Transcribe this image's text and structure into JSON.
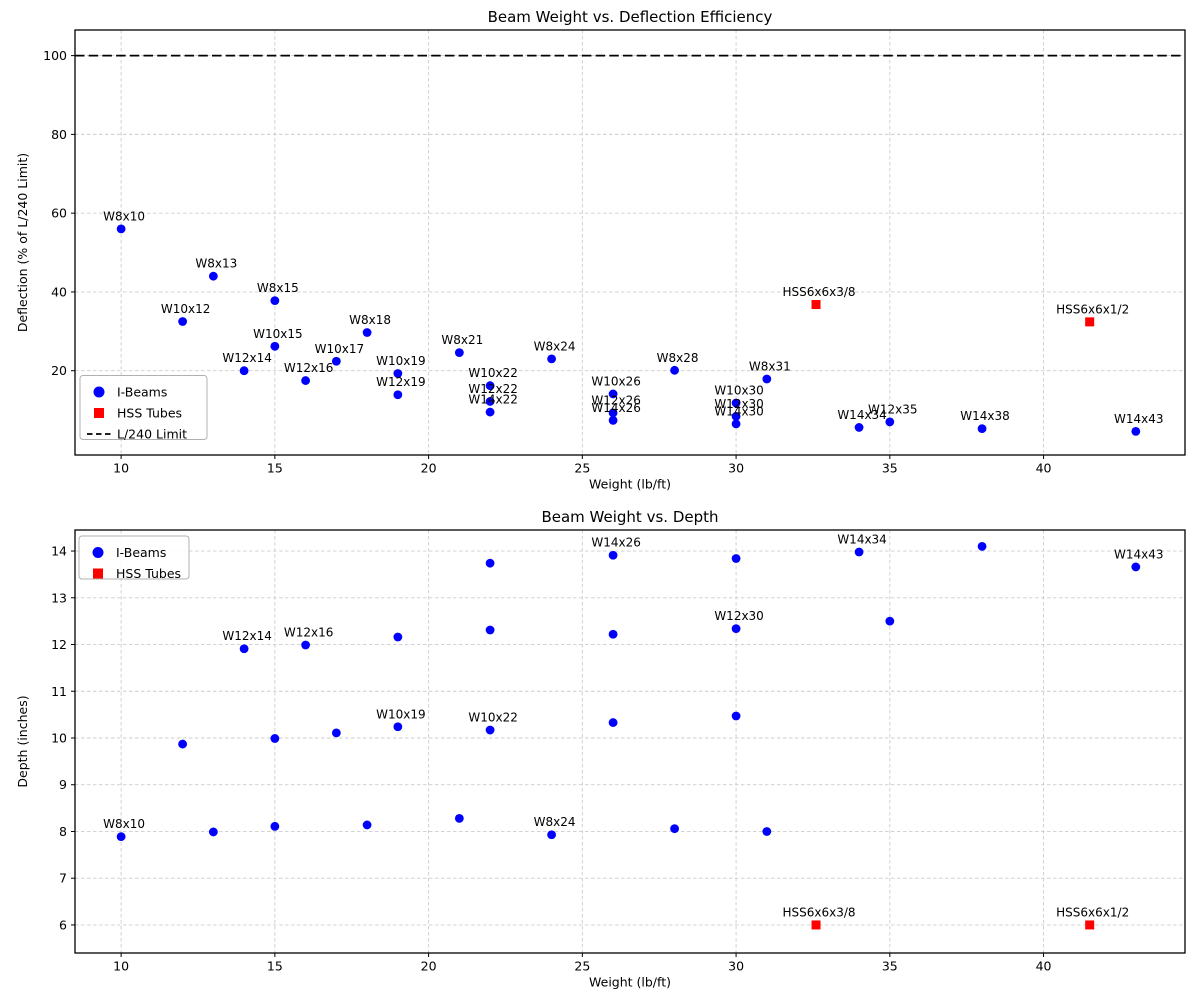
{
  "figure": {
    "background": "#ffffff",
    "ibeam_color": "#0000ff",
    "hss_color": "#ff0000",
    "limit_color": "#000000",
    "grid_color": "#cccccc"
  },
  "chart_data": [
    {
      "id": "deflection",
      "type": "scatter",
      "title": "Beam Weight vs. Deflection Efficiency",
      "xlabel": "Weight (lb/ft)",
      "ylabel": "Deflection (% of L/240 Limit)",
      "xlim": [
        8.5,
        44.6
      ],
      "ylim": [
        -1.4,
        106.5
      ],
      "xticks": [
        10,
        15,
        20,
        25,
        30,
        35,
        40
      ],
      "yticks": [
        20,
        40,
        60,
        80,
        100
      ],
      "grid": true,
      "legend_position": "lower left",
      "legend": [
        {
          "label": "I-Beams",
          "marker": "circle",
          "color": "#0000ff"
        },
        {
          "label": "HSS Tubes",
          "marker": "square",
          "color": "#ff0000"
        },
        {
          "label": "L/240 Limit",
          "marker": "dashed-line",
          "color": "#000000"
        }
      ],
      "limit_line": {
        "y": 100,
        "style": "dashed",
        "color": "#000000",
        "label": "L/240 Limit"
      },
      "series": [
        {
          "name": "I-Beams",
          "marker": "circle",
          "color": "#0000ff",
          "points": [
            {
              "label": "W8x10",
              "x": 10,
              "y": 56.0,
              "annotated": true
            },
            {
              "label": "W10x12",
              "x": 12,
              "y": 32.5,
              "annotated": true
            },
            {
              "label": "W8x13",
              "x": 13,
              "y": 44.0,
              "annotated": true
            },
            {
              "label": "W12x14",
              "x": 14,
              "y": 20.0,
              "annotated": true
            },
            {
              "label": "W8x15",
              "x": 15,
              "y": 37.8,
              "annotated": true
            },
            {
              "label": "W10x15",
              "x": 15,
              "y": 26.2,
              "annotated": true
            },
            {
              "label": "W12x16",
              "x": 16,
              "y": 17.5,
              "annotated": true
            },
            {
              "label": "W10x17",
              "x": 17,
              "y": 22.4,
              "annotated": true
            },
            {
              "label": "W8x18",
              "x": 18,
              "y": 29.7,
              "annotated": true
            },
            {
              "label": "W10x19",
              "x": 19,
              "y": 19.3,
              "annotated": true
            },
            {
              "label": "W12x19",
              "x": 19,
              "y": 13.9,
              "annotated": true
            },
            {
              "label": "W8x21",
              "x": 21,
              "y": 24.6,
              "annotated": true
            },
            {
              "label": "W10x22",
              "x": 22,
              "y": 16.2,
              "annotated": true
            },
            {
              "label": "W12x22",
              "x": 22,
              "y": 12.2,
              "annotated": true
            },
            {
              "label": "W14x22",
              "x": 22,
              "y": 9.5,
              "annotated": true
            },
            {
              "label": "W8x24",
              "x": 24,
              "y": 23.0,
              "annotated": true
            },
            {
              "label": "W10x26",
              "x": 26,
              "y": 14.1,
              "annotated": true
            },
            {
              "label": "W12x26",
              "x": 26,
              "y": 9.3,
              "annotated": true
            },
            {
              "label": "W14x26",
              "x": 26,
              "y": 7.4,
              "annotated": true
            },
            {
              "label": "W8x28",
              "x": 28,
              "y": 20.1,
              "annotated": true
            },
            {
              "label": "W10x30",
              "x": 30,
              "y": 11.8,
              "annotated": true
            },
            {
              "label": "W12x30",
              "x": 30,
              "y": 8.4,
              "annotated": true
            },
            {
              "label": "W14x30",
              "x": 30,
              "y": 6.5,
              "annotated": true
            },
            {
              "label": "W8x31",
              "x": 31,
              "y": 17.9,
              "annotated": true
            },
            {
              "label": "W14x34",
              "x": 34,
              "y": 5.6,
              "annotated": true
            },
            {
              "label": "W12x35",
              "x": 35,
              "y": 7.0,
              "annotated": true
            },
            {
              "label": "W14x38",
              "x": 38,
              "y": 5.3,
              "annotated": true
            },
            {
              "label": "W14x43",
              "x": 43,
              "y": 4.6,
              "annotated": true
            }
          ]
        },
        {
          "name": "HSS Tubes",
          "marker": "square",
          "color": "#ff0000",
          "points": [
            {
              "label": "HSS6x6x3/8",
              "x": 32.6,
              "y": 36.8,
              "annotated": true
            },
            {
              "label": "HSS6x6x1/2",
              "x": 41.5,
              "y": 32.4,
              "annotated": true
            }
          ]
        }
      ]
    },
    {
      "id": "depth",
      "type": "scatter",
      "title": "Beam Weight vs. Depth",
      "xlabel": "Weight (lb/ft)",
      "ylabel": "Depth (inches)",
      "xlim": [
        8.5,
        44.6
      ],
      "ylim": [
        5.4,
        14.45
      ],
      "xticks": [
        10,
        15,
        20,
        25,
        30,
        35,
        40
      ],
      "yticks": [
        6,
        7,
        8,
        9,
        10,
        11,
        12,
        13,
        14
      ],
      "grid": true,
      "legend_position": "upper left",
      "legend": [
        {
          "label": "I-Beams",
          "marker": "circle",
          "color": "#0000ff"
        },
        {
          "label": "HSS Tubes",
          "marker": "square",
          "color": "#ff0000"
        }
      ],
      "series": [
        {
          "name": "I-Beams",
          "marker": "circle",
          "color": "#0000ff",
          "points": [
            {
              "label": "W8x10",
              "x": 10,
              "y": 7.89,
              "annotated": true
            },
            {
              "label": "W10x12",
              "x": 12,
              "y": 9.87,
              "annotated": false
            },
            {
              "label": "W8x13",
              "x": 13,
              "y": 7.99,
              "annotated": false
            },
            {
              "label": "W12x14",
              "x": 14,
              "y": 11.91,
              "annotated": true
            },
            {
              "label": "W8x15",
              "x": 15,
              "y": 8.11,
              "annotated": false
            },
            {
              "label": "W10x15",
              "x": 15,
              "y": 9.99,
              "annotated": false
            },
            {
              "label": "W12x16",
              "x": 16,
              "y": 11.99,
              "annotated": true
            },
            {
              "label": "W10x17",
              "x": 17,
              "y": 10.11,
              "annotated": false
            },
            {
              "label": "W8x18",
              "x": 18,
              "y": 8.14,
              "annotated": false
            },
            {
              "label": "W10x19",
              "x": 19,
              "y": 10.24,
              "annotated": true
            },
            {
              "label": "W12x19",
              "x": 19,
              "y": 12.16,
              "annotated": false
            },
            {
              "label": "W8x21",
              "x": 21,
              "y": 8.28,
              "annotated": false
            },
            {
              "label": "W10x22",
              "x": 22,
              "y": 10.17,
              "annotated": true
            },
            {
              "label": "W12x22",
              "x": 22,
              "y": 12.31,
              "annotated": false
            },
            {
              "label": "W14x22",
              "x": 22,
              "y": 13.74,
              "annotated": false
            },
            {
              "label": "W8x24",
              "x": 24,
              "y": 7.93,
              "annotated": true
            },
            {
              "label": "W10x26",
              "x": 26,
              "y": 10.33,
              "annotated": false
            },
            {
              "label": "W12x26",
              "x": 26,
              "y": 12.22,
              "annotated": false
            },
            {
              "label": "W14x26",
              "x": 26,
              "y": 13.91,
              "annotated": true
            },
            {
              "label": "W8x28",
              "x": 28,
              "y": 8.06,
              "annotated": false
            },
            {
              "label": "W10x30",
              "x": 30,
              "y": 10.47,
              "annotated": false
            },
            {
              "label": "W12x30",
              "x": 30,
              "y": 12.34,
              "annotated": true
            },
            {
              "label": "W14x30",
              "x": 30,
              "y": 13.84,
              "annotated": false
            },
            {
              "label": "W8x31",
              "x": 31,
              "y": 8.0,
              "annotated": false
            },
            {
              "label": "W14x34",
              "x": 34,
              "y": 13.98,
              "annotated": true
            },
            {
              "label": "W12x35",
              "x": 35,
              "y": 12.5,
              "annotated": false
            },
            {
              "label": "W14x38",
              "x": 38,
              "y": 14.1,
              "annotated": false
            },
            {
              "label": "W14x43",
              "x": 43,
              "y": 13.66,
              "annotated": true
            }
          ]
        },
        {
          "name": "HSS Tubes",
          "marker": "square",
          "color": "#ff0000",
          "points": [
            {
              "label": "HSS6x6x3/8",
              "x": 32.6,
              "y": 6.0,
              "annotated": true
            },
            {
              "label": "HSS6x6x1/2",
              "x": 41.5,
              "y": 6.0,
              "annotated": true
            }
          ]
        }
      ]
    }
  ]
}
